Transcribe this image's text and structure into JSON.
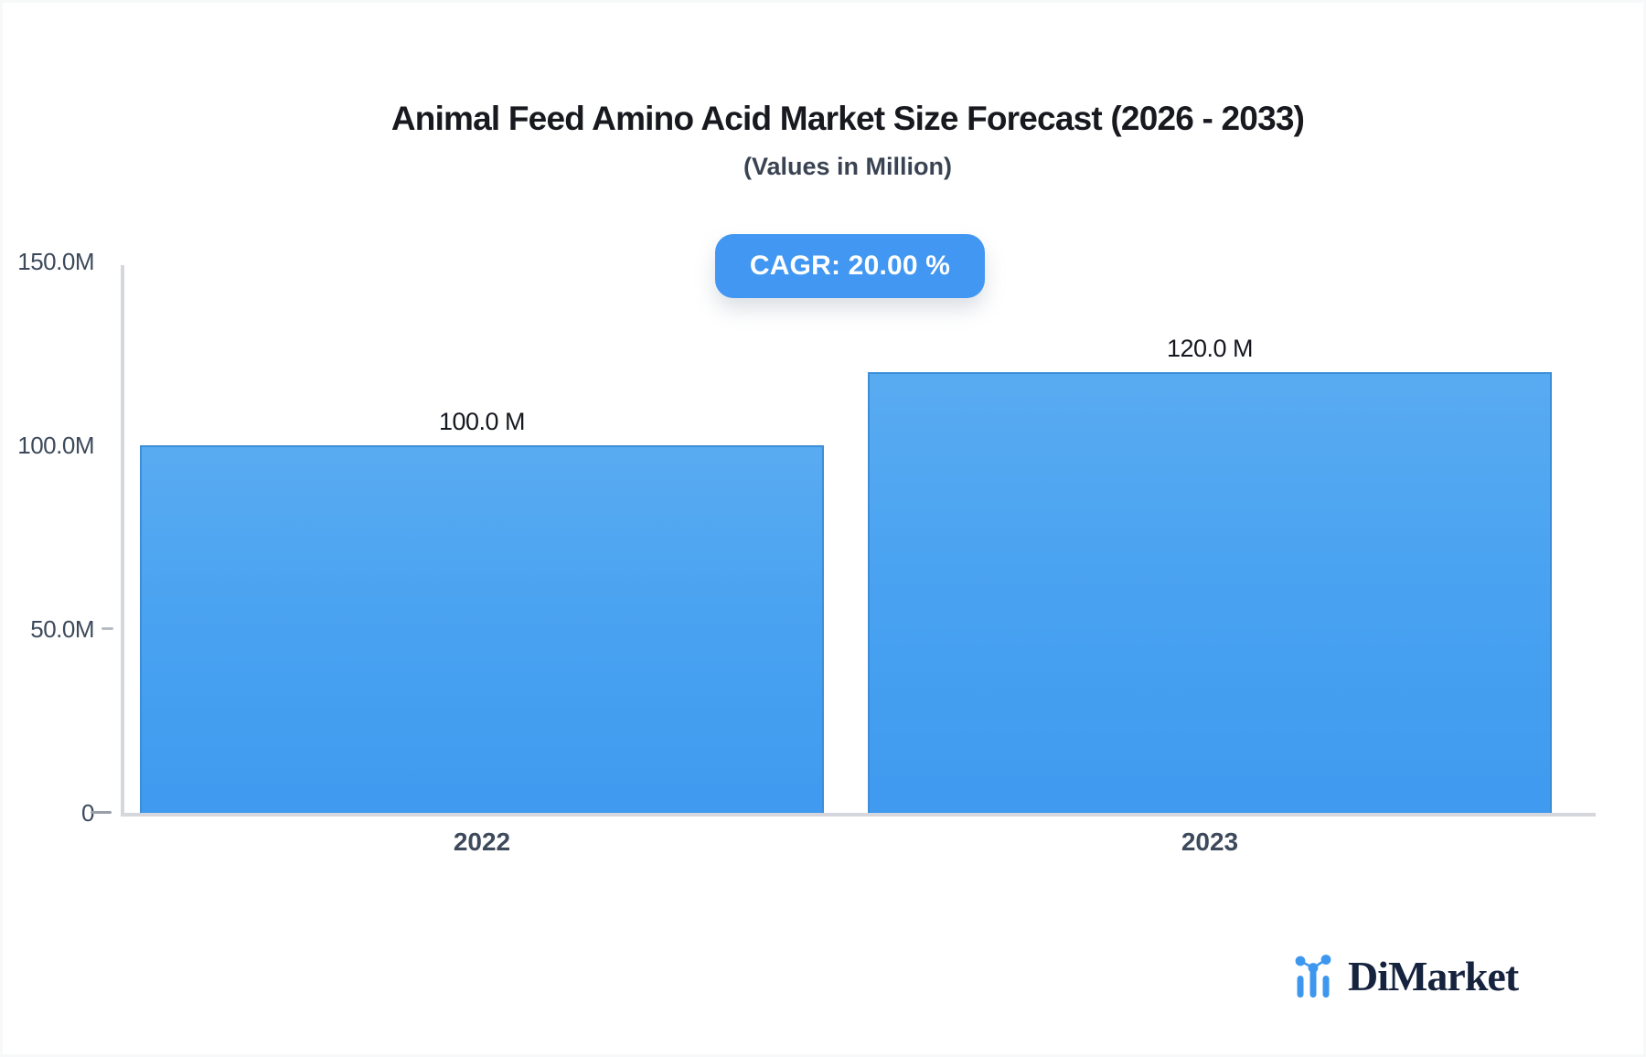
{
  "chart_data": {
    "type": "bar",
    "title": "Animal Feed Amino Acid Market Size Forecast (2026 - 2033)",
    "subtitle": "(Values in Million)",
    "cagr_text": "CAGR: 20.00 %",
    "categories": [
      "2022",
      "2023"
    ],
    "values": [
      100.0,
      120.0
    ],
    "value_labels": [
      "100.0 M",
      "120.0 M"
    ],
    "unit": "Million",
    "xlabel": "",
    "ylabel": "",
    "ylim": [
      0,
      150
    ],
    "ytick_labels": [
      "150.0M",
      "100.0M",
      "50.0M",
      "0"
    ],
    "ytick_values": [
      150,
      100,
      50,
      0
    ],
    "grid": false,
    "legend_position": "none"
  },
  "branding": {
    "logo_text": "DiMarket",
    "logo_icon": "bar-line-chart-logo-icon"
  },
  "colors": {
    "badge_bg": "#4197f2",
    "badge_text": "#ffffff",
    "bar_fill_top": "#59abf1",
    "bar_fill_bottom": "#3f9af0",
    "bar_border": "#3c8ed9",
    "axis_line": "#d5d7dc",
    "axis_label_text": "#3d4a5c",
    "title_text": "#17191f",
    "logo_navy": "#15233e",
    "logo_blue": "#3e97ef"
  }
}
